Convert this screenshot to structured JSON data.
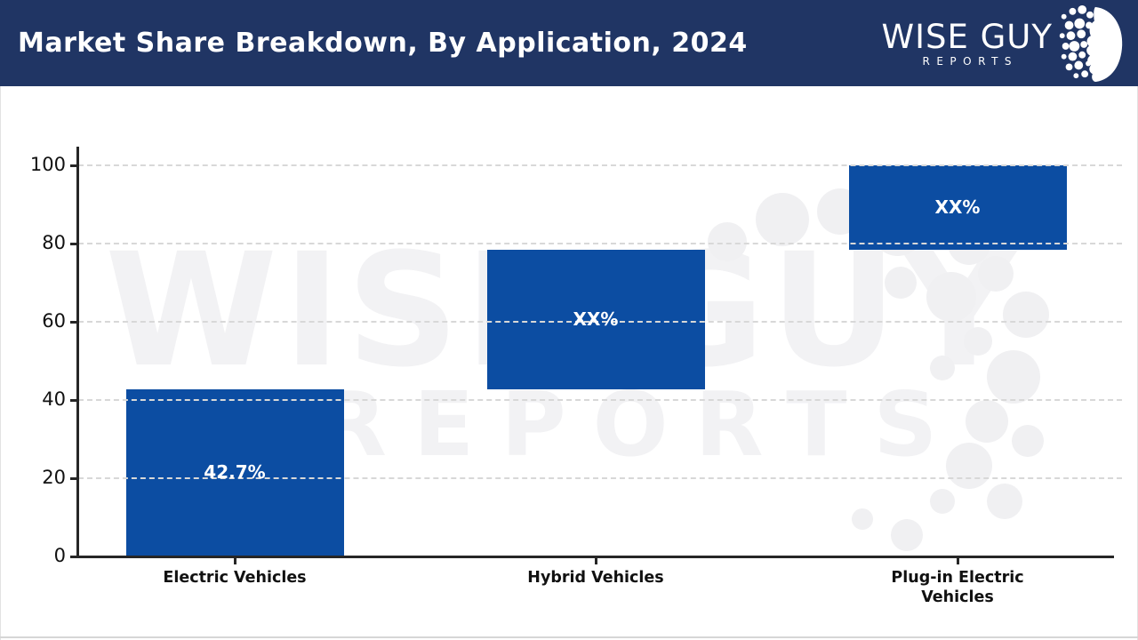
{
  "header": {
    "title": "Market Share Breakdown, By Application, 2024",
    "logo": {
      "brand_line1": "WISE GUY",
      "brand_line2": "REPORTS"
    }
  },
  "watermark": {
    "line1": "WISE GUY",
    "line2": "REPORTS"
  },
  "chart_data": {
    "type": "bar",
    "subtype": "cumulative_floating_bars",
    "title": "Market Share Breakdown, By Application, 2024",
    "categories": [
      "Electric Vehicles",
      "Hybrid Vehicles",
      "Plug-in Electric Vehicles"
    ],
    "bars": [
      {
        "category": "Electric Vehicles",
        "start": 0,
        "end": 42.7,
        "label": "42.7%"
      },
      {
        "category": "Hybrid Vehicles",
        "start": 42.7,
        "end": 78.4,
        "label": "XX%"
      },
      {
        "category": "Plug-in Electric Vehicles",
        "start": 78.4,
        "end": 100,
        "label": "XX%"
      }
    ],
    "yticks": [
      0,
      20,
      40,
      60,
      80,
      100
    ],
    "ylim": [
      0,
      105
    ],
    "xlabel": "",
    "ylabel": "",
    "legend": "none",
    "grid": "horizontal-dashed-over-bars",
    "colors": {
      "bar": "#0c4da2",
      "bar_label": "#ffffff",
      "grid": "#d8d8d8",
      "axis": "#262626",
      "tick_label": "#111111",
      "header_bg": "#203564",
      "header_text": "#ffffff",
      "watermark": "#f2f2f4"
    }
  }
}
